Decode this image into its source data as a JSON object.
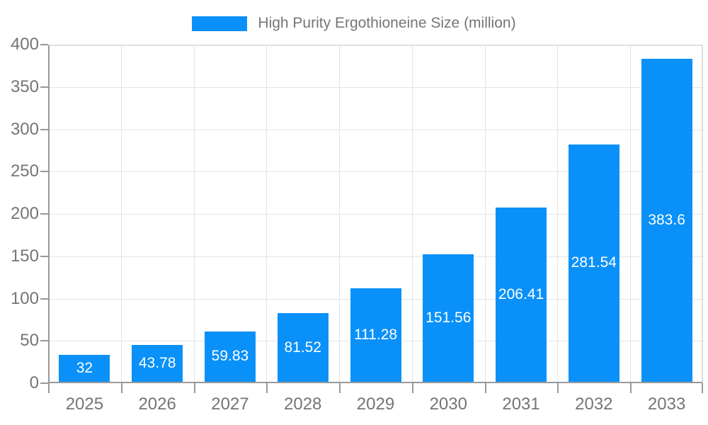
{
  "chart_data": {
    "type": "bar",
    "title": "High Purity Ergothioneine Size (million)",
    "categories": [
      "2025",
      "2026",
      "2027",
      "2028",
      "2029",
      "2030",
      "2031",
      "2032",
      "2033"
    ],
    "values": [
      32,
      43.78,
      59.83,
      81.52,
      111.28,
      151.56,
      206.41,
      281.54,
      383.6
    ],
    "value_labels": [
      "32",
      "43.78",
      "59.83",
      "81.52",
      "111.28",
      "151.56",
      "206.41",
      "281.54",
      "383.6"
    ],
    "xlabel": "",
    "ylabel": "",
    "ylim": [
      0,
      400
    ],
    "yticks": [
      0,
      50,
      100,
      150,
      200,
      250,
      300,
      350,
      400
    ],
    "grid": true,
    "legend_position": "top",
    "value_label_position": "center-of-bar"
  },
  "legend": {
    "label": "High Purity Ergothioneine Size (million)"
  },
  "colors": {
    "bar": "#0a91f9",
    "axis": "#999999",
    "grid": "#e4e4e4",
    "text": "#757575",
    "value_label": "#ffffff",
    "background": "#ffffff"
  }
}
